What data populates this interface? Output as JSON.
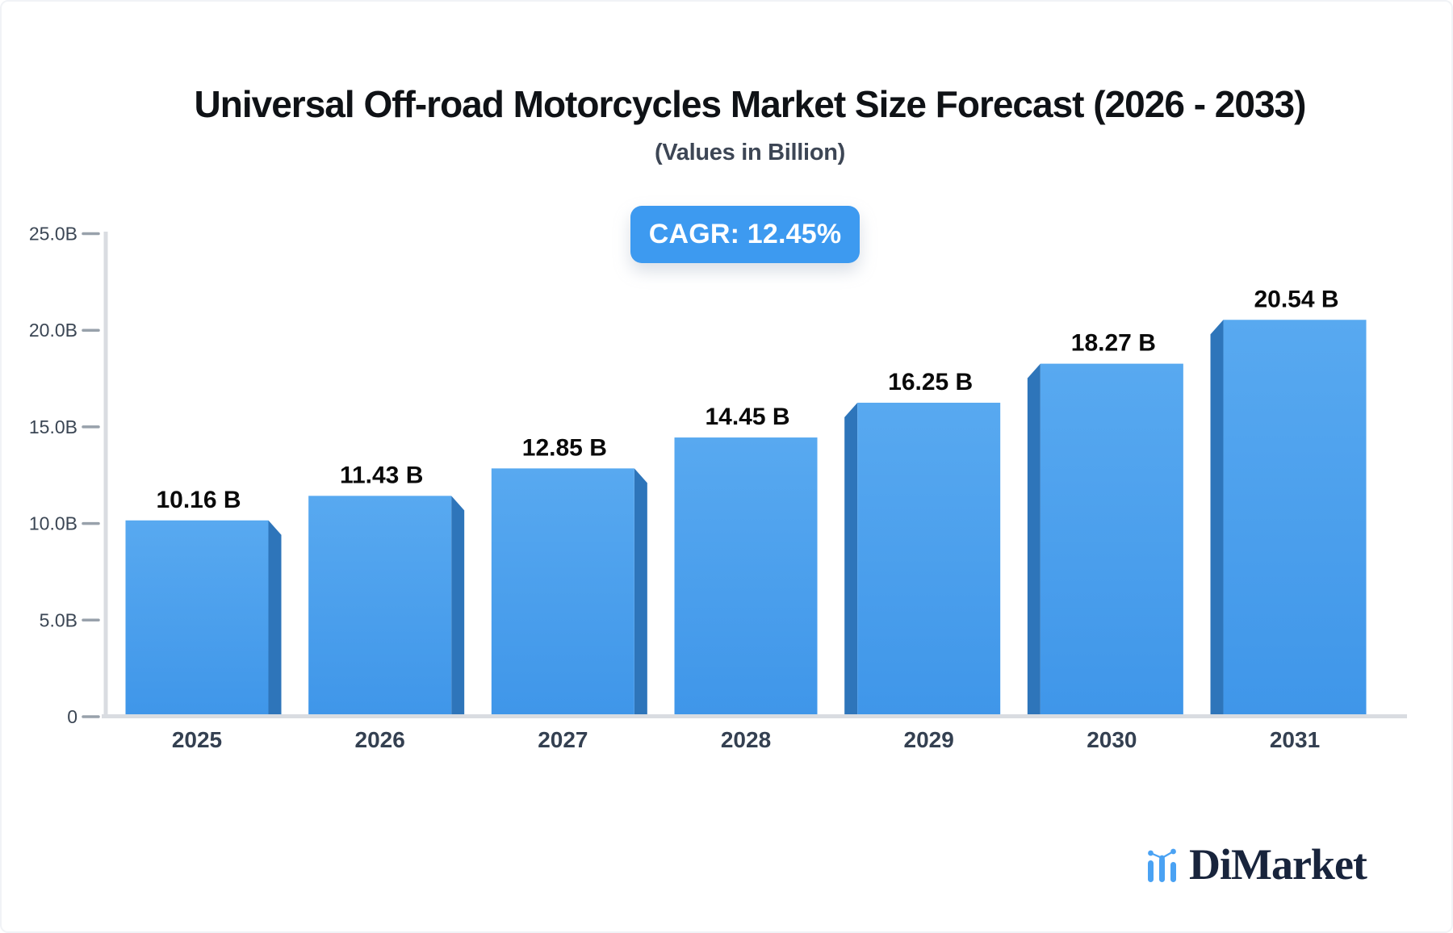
{
  "header": {
    "title": "Universal Off-road Motorcycles Market Size Forecast (2026 - 2033)",
    "subtitle": "(Values in Billion)"
  },
  "badge": {
    "label": "CAGR: 12.45%",
    "background": "#3d9af0",
    "text_color": "#ffffff"
  },
  "chart_data": {
    "type": "bar",
    "title": "Universal Off-road Motorcycles Market Size Forecast (2026 - 2033)",
    "subtitle": "(Values in Billion)",
    "categories": [
      "2025",
      "2026",
      "2027",
      "2028",
      "2029",
      "2030",
      "2031"
    ],
    "values": [
      10.16,
      11.43,
      12.85,
      14.45,
      16.25,
      18.27,
      20.54
    ],
    "value_labels": [
      "10.16 B",
      "11.43 B",
      "12.85 B",
      "14.45 B",
      "16.25 B",
      "18.27 B",
      "20.54 B"
    ],
    "xlabel": "",
    "ylabel": "",
    "ylim": [
      0,
      25
    ],
    "grid": "off",
    "legend": "none",
    "y_ticks": [
      {
        "value": 0,
        "label": "0"
      },
      {
        "value": 5,
        "label": "5.0B"
      },
      {
        "value": 10,
        "label": "10.0B"
      },
      {
        "value": 15,
        "label": "15.0B"
      },
      {
        "value": 20,
        "label": "20.0B"
      },
      {
        "value": 25,
        "label": "25.0B"
      }
    ],
    "colors": {
      "bar_front_top": "#58a9f0",
      "bar_front_bottom": "#3f96e9",
      "bar_side": "#2e75ba",
      "axis_line": "#d9dce1",
      "tick_mark": "#98a1ab",
      "axis_label": "#3b4654",
      "category_label": "#344051",
      "value_label": "#0a0a0a"
    }
  },
  "logo": {
    "text": "DiMarket",
    "icon": "mini-bar-chart-icon",
    "text_color": "#18243c",
    "icon_color": "#4aa2f3"
  }
}
